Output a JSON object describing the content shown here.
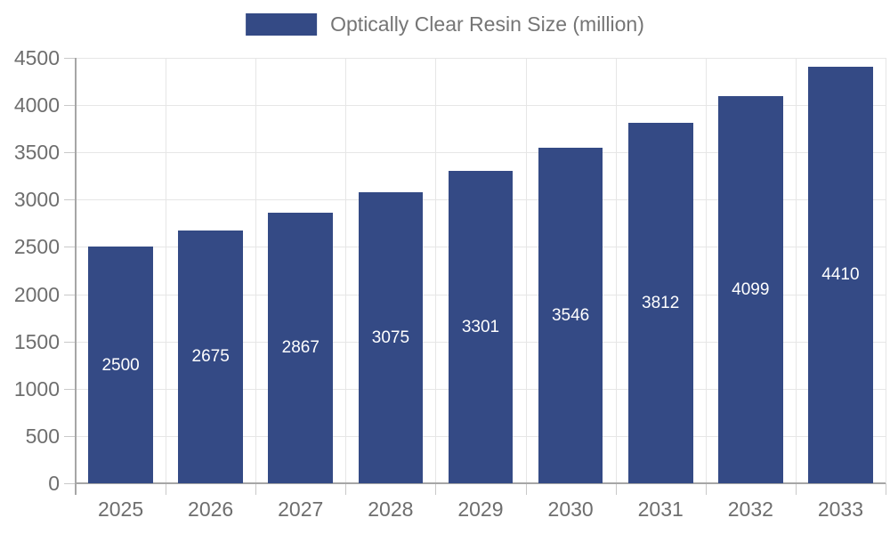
{
  "chart_data": {
    "type": "bar",
    "title": "Optically Clear Resin Size (million)",
    "legend": {
      "label": "Optically Clear Resin Size (million)",
      "position": "top-center"
    },
    "categories": [
      "2025",
      "2026",
      "2027",
      "2028",
      "2029",
      "2030",
      "2031",
      "2032",
      "2033"
    ],
    "series": [
      {
        "name": "Optically Clear Resin Size (million)",
        "values": [
          2500,
          2675,
          2867,
          3075,
          3301,
          3546,
          3812,
          4099,
          4410
        ]
      }
    ],
    "values": [
      2500,
      2675,
      2867,
      3075,
      3301,
      3546,
      3812,
      4099,
      4410
    ],
    "data_labels": [
      "2500",
      "2675",
      "2867",
      "3075",
      "3301",
      "3546",
      "3812",
      "4099",
      "4410"
    ],
    "xlabel": "",
    "ylabel": "",
    "ylim": [
      0,
      4500
    ],
    "ytick_step": 500,
    "yticks": [
      0,
      500,
      1000,
      1500,
      2000,
      2500,
      3000,
      3500,
      4000,
      4500
    ],
    "ytick_labels": [
      "0",
      "500",
      "1000",
      "1500",
      "2000",
      "2500",
      "3000",
      "3500",
      "4000",
      "4500"
    ],
    "grid": true,
    "colors": {
      "bar": "#344a85",
      "bar_value_text": "#ffffff",
      "grid": "#e6e6e6",
      "axis_line": "#a6a6a6",
      "tick": "#c9c9c9",
      "axis_label_text": "#6e6e6e",
      "legend_text": "#757575",
      "background": "#ffffff"
    }
  }
}
